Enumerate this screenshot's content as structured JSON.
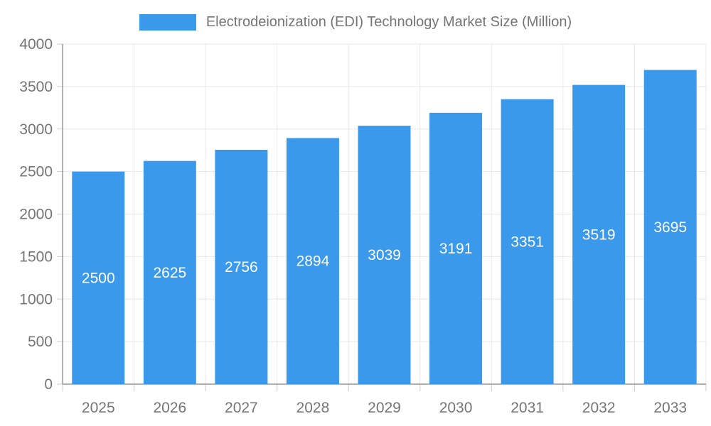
{
  "legend": {
    "label": "Electrodeionization (EDI) Technology Market Size (Million)"
  },
  "colors": {
    "bar": "#3b99ec",
    "grid": "#e8e8e8",
    "tick": "#cccccc",
    "axis": "#999999",
    "axis_text": "#757575",
    "legend_text": "#757575",
    "bar_label": "#ffffff",
    "background": "#ffffff"
  },
  "chart_data": {
    "type": "bar",
    "title": "Electrodeionization (EDI) Technology Market Size (Million)",
    "series_name": "Electrodeionization (EDI) Technology Market Size (Million)",
    "categories": [
      "2025",
      "2026",
      "2027",
      "2028",
      "2029",
      "2030",
      "2031",
      "2032",
      "2033"
    ],
    "values": [
      2500,
      2625,
      2756,
      2894,
      3039,
      3191,
      3351,
      3519,
      3695
    ],
    "xlabel": "",
    "ylabel": "",
    "ylim": [
      0,
      4000
    ],
    "yticks": [
      0,
      500,
      1000,
      1500,
      2000,
      2500,
      3000,
      3500,
      4000
    ],
    "grid": true,
    "legend_position": "top",
    "bar_value_labels": "inside-center"
  }
}
